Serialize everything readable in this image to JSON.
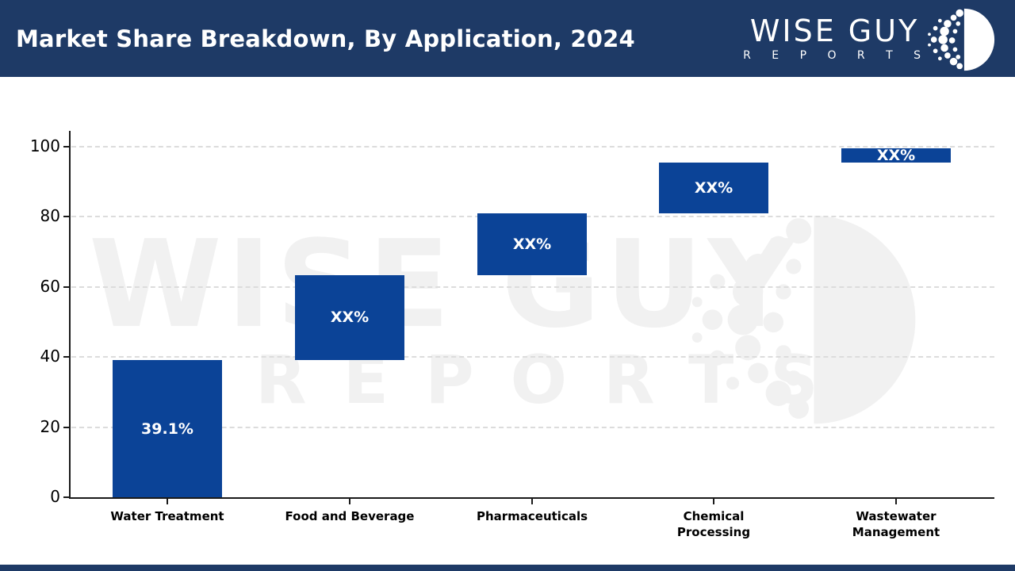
{
  "header": {
    "title": "Market Share Breakdown, By Application, 2024",
    "bg_color": "#1e3a66",
    "brand": {
      "line1": "WISE GUY",
      "line2": "R E P O R T S"
    }
  },
  "watermark": {
    "line1": "WISE GUY",
    "line2": "REPORTS"
  },
  "footer": {
    "bg_color": "#1e3a66"
  },
  "chart_data": {
    "type": "bar",
    "variant": "waterfall",
    "title": "Market Share Breakdown, By Application, 2024",
    "categories": [
      "Water Treatment",
      "Food and Beverage",
      "Pharmaceuticals",
      "Chemical Processing",
      "Wastewater Management"
    ],
    "category_display": [
      "Water Treatment",
      "Food and Beverage",
      "Pharmaceuticals",
      "Chemical\nProcessing",
      "Wastewater\nManagement"
    ],
    "series": [
      {
        "name": "Market Share",
        "base": [
          0,
          39.1,
          63.4,
          81.0,
          95.5
        ],
        "top": [
          39.1,
          63.4,
          81.0,
          95.5,
          99.6
        ]
      }
    ],
    "segment_values": [
      39.1,
      24.3,
      17.6,
      14.5,
      4.1
    ],
    "bar_labels": [
      "39.1%",
      "XX%",
      "XX%",
      "XX%",
      "XX%"
    ],
    "xlabel": "",
    "ylabel": "",
    "ylim": [
      0,
      100
    ],
    "yticks": [
      0,
      20,
      40,
      60,
      80,
      100
    ],
    "bar_color": "#0b4397",
    "grid": "horizontal-dashed",
    "legend": "none"
  }
}
